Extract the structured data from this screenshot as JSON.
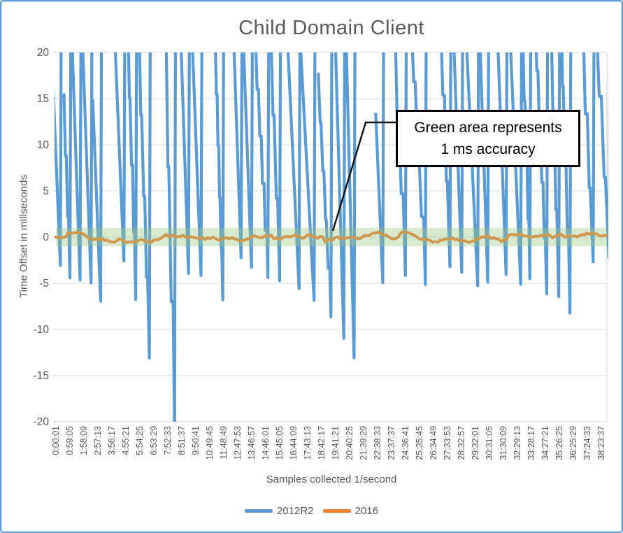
{
  "frame": {
    "border_color": "#5E9CD3"
  },
  "chart_data": {
    "type": "line",
    "title": "Child Domain Client",
    "x_axis": {
      "title": "Samples collected 1/second",
      "tick_labels": [
        "0:00:01",
        "0:59:05",
        "1:58:09",
        "2:57:13",
        "3:56:17",
        "4:55:21",
        "5:54:25",
        "6:53:29",
        "7:52:33",
        "8:51:37",
        "9:50:41",
        "10:49:45",
        "11:48:49",
        "12:47:53",
        "13:46:57",
        "14:46:01",
        "15:45:05",
        "16:44:09",
        "17:43:13",
        "18:42:17",
        "19:41:21",
        "20:40:25",
        "21:39:29",
        "22:38:33",
        "23:37:37",
        "24:36:41",
        "25:35:45",
        "26:34:49",
        "27:33:53",
        "28:32:57",
        "29:32:01",
        "30:31:05",
        "31:30:09",
        "32:29:13",
        "33:28:17",
        "34:27:21",
        "35:26:25",
        "36:25:29",
        "37:24:33",
        "38:23:37"
      ]
    },
    "y_axis": {
      "title": "Time Offset in mIllseconds",
      "ticks": [
        20,
        15,
        10,
        5,
        0,
        -5,
        -10,
        -15,
        -20
      ],
      "range": [
        -20,
        20
      ]
    },
    "grid": {
      "horizontal": true,
      "vertical": false,
      "color": "#D9D9D9"
    },
    "accuracy_band": {
      "from_ms": -1,
      "to_ms": 1,
      "fill": "#9BC67E",
      "opacity": 0.38,
      "meaning": "1 ms accuracy"
    },
    "annotation": {
      "line1": "Green area represents",
      "line2": "1 ms accuracy",
      "points_to_ms": 0
    },
    "legend": [
      {
        "label": "2012R2",
        "color": "#5B9BD5"
      },
      {
        "label": "2016",
        "color": "#ED7D31"
      }
    ],
    "series": [
      {
        "name": "2012R2",
        "color": "#5B9BD5",
        "pattern": "sawtooth",
        "peak_ms": 20,
        "peak_note": "clipped at +20 axis max",
        "typical_trough_ms": [
          -8,
          -2
        ],
        "spike_trough_ms": [
          -22,
          -10
        ],
        "behavior": "offset repeatedly jumps to ~+20 ms then ramps down past 0; periodic deep spikes below -10 ms, some past -20 ms"
      },
      {
        "name": "2016",
        "color": "#ED7D31",
        "pattern": "flat-noise",
        "mean_ms": 0,
        "amplitude_ms": 0.5,
        "behavior": "stays within the ±1 ms green accuracy band for the whole capture"
      }
    ],
    "render": {
      "seed": 11,
      "orange_seed_offset": 1,
      "teeth_per_cluster": [
        3,
        7
      ],
      "deep_cluster_probability": 0.5,
      "stepped_descent_probability": 0.5
    }
  }
}
